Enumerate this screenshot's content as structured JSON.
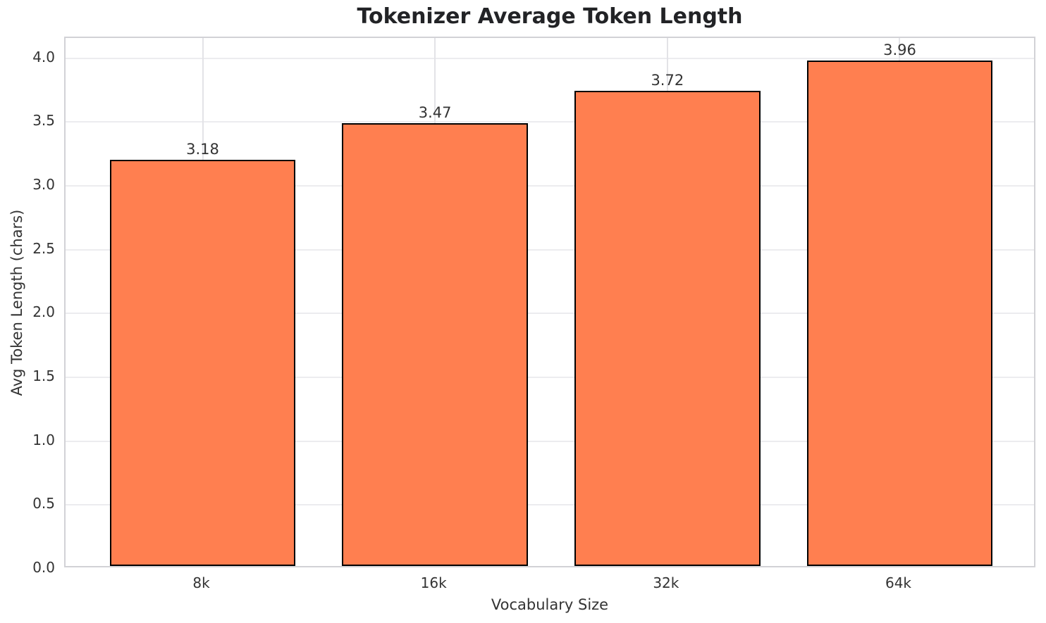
{
  "chart_data": {
    "type": "bar",
    "title": "Tokenizer Average Token Length",
    "xlabel": "Vocabulary Size",
    "ylabel": "Avg Token Length (chars)",
    "categories": [
      "8k",
      "16k",
      "32k",
      "64k"
    ],
    "values": [
      3.18,
      3.47,
      3.72,
      3.96
    ],
    "value_labels": [
      "3.18",
      "3.47",
      "3.72",
      "3.96"
    ],
    "yticks": [
      0.0,
      0.5,
      1.0,
      1.5,
      2.0,
      2.5,
      3.0,
      3.5,
      4.0
    ],
    "ytick_labels": [
      "0.0",
      "0.5",
      "1.0",
      "1.5",
      "2.0",
      "2.5",
      "3.0",
      "3.5",
      "4.0"
    ],
    "ylim": [
      0,
      4.158
    ],
    "xlim": [
      -0.59,
      3.59
    ],
    "bar_width": 0.8,
    "grid": true,
    "legend": null,
    "colors": {
      "bar_fill": "#FF7F50",
      "bar_edge": "#000000",
      "h_grid": "#ececef",
      "v_grid": "#e3e3e7",
      "spine": "#d2d2d6",
      "title": "#222326",
      "tick_label": "#333333",
      "axis_label": "#333333",
      "value_label": "#333333",
      "background": "#ffffff"
    }
  }
}
